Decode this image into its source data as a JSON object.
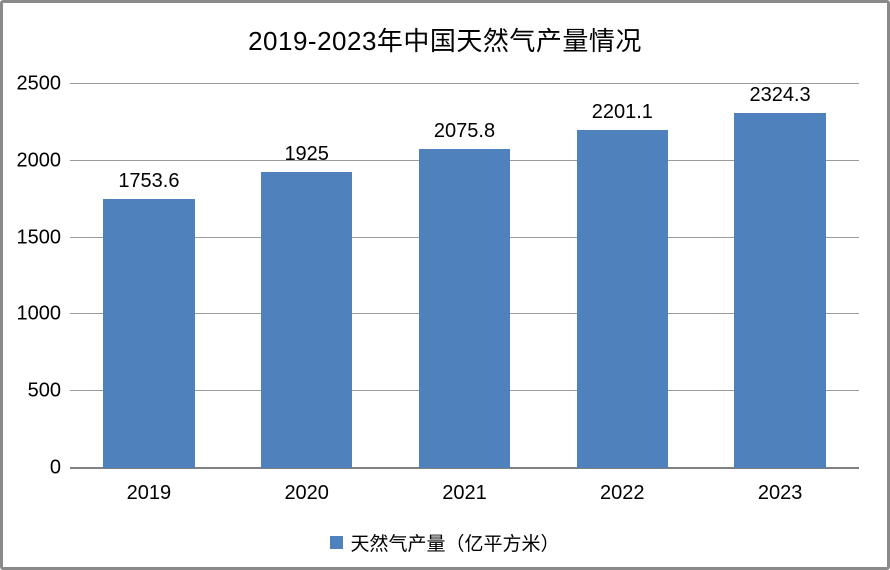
{
  "chart_data": {
    "type": "bar",
    "title": "2019-2023年中国天然气产量情况",
    "categories": [
      "2019",
      "2020",
      "2021",
      "2022",
      "2023"
    ],
    "values": [
      1753.6,
      1925,
      2075.8,
      2201.1,
      2324.3
    ],
    "value_labels": [
      "1753.6",
      "1925",
      "2075.8",
      "2201.1",
      "2324.3"
    ],
    "series_name": "天然气产量（亿平方米）",
    "legend": {
      "label": "天然气产量（亿平方米）",
      "position": "bottom",
      "marker": "square-icon"
    },
    "xlabel": "",
    "ylabel": "",
    "ylim": [
      0,
      2500
    ],
    "ytick_interval": 500,
    "yticks": [
      "0",
      "500",
      "1000",
      "1500",
      "2000",
      "2500"
    ],
    "grid": "horizontal",
    "data_labels_shown": true,
    "colors": {
      "bar": "#4f81bd",
      "gridline": "#9b9b9b",
      "axis_line": "#808080",
      "frame_border": "#8a8a8a",
      "text": "#000000",
      "background": "#ffffff"
    }
  }
}
